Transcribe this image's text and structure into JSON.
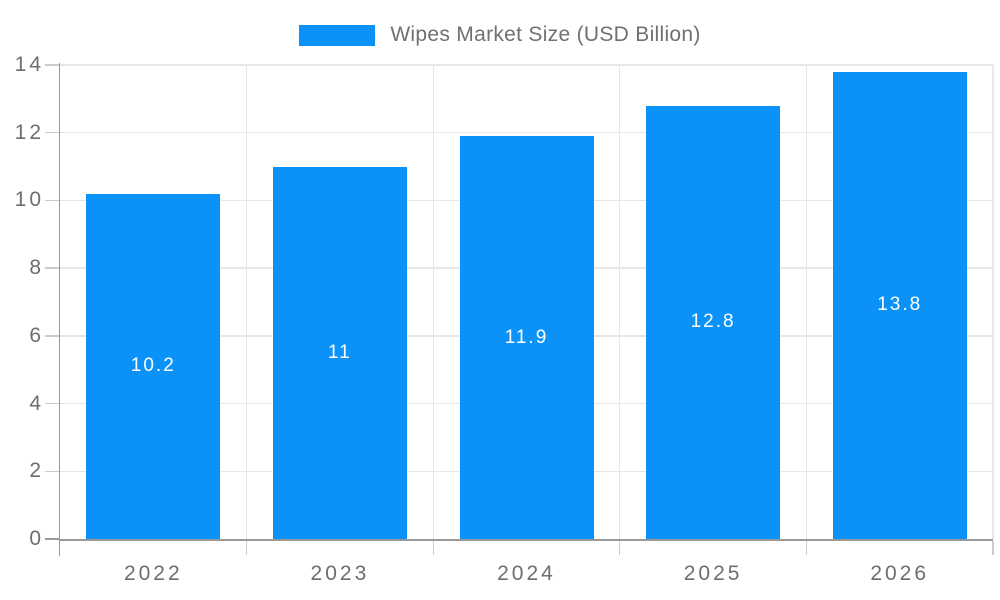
{
  "chart_data": {
    "type": "bar",
    "title": "Wipes Market Size (USD Billion)",
    "legend": {
      "label": "Wipes Market Size (USD Billion)",
      "position": "top"
    },
    "categories": [
      "2022",
      "2023",
      "2024",
      "2025",
      "2026"
    ],
    "series": [
      {
        "name": "Wipes Market Size (USD Billion)",
        "values": [
          10.2,
          11,
          11.9,
          12.8,
          13.8
        ],
        "value_labels": [
          "10.2",
          "11",
          "11.9",
          "12.8",
          "13.8"
        ]
      }
    ],
    "xlabel": "",
    "ylabel": "",
    "ylim": [
      0,
      14
    ],
    "yticks": [
      0,
      2,
      4,
      6,
      8,
      10,
      12,
      14
    ],
    "ytick_labels": [
      "0",
      "2",
      "4",
      "6",
      "8",
      "10",
      "12",
      "14"
    ],
    "grid": true,
    "value_labels_position": "inside-center",
    "colors": {
      "bar": "#0B92F8",
      "grid": "#E7E7E7",
      "axis": "#999999",
      "tick": "#CCCCCC",
      "axis_text": "#6E6E6E",
      "legend_text": "#707070",
      "bar_label_text": "#FFFFFF",
      "background": "#FFFFFF"
    }
  }
}
